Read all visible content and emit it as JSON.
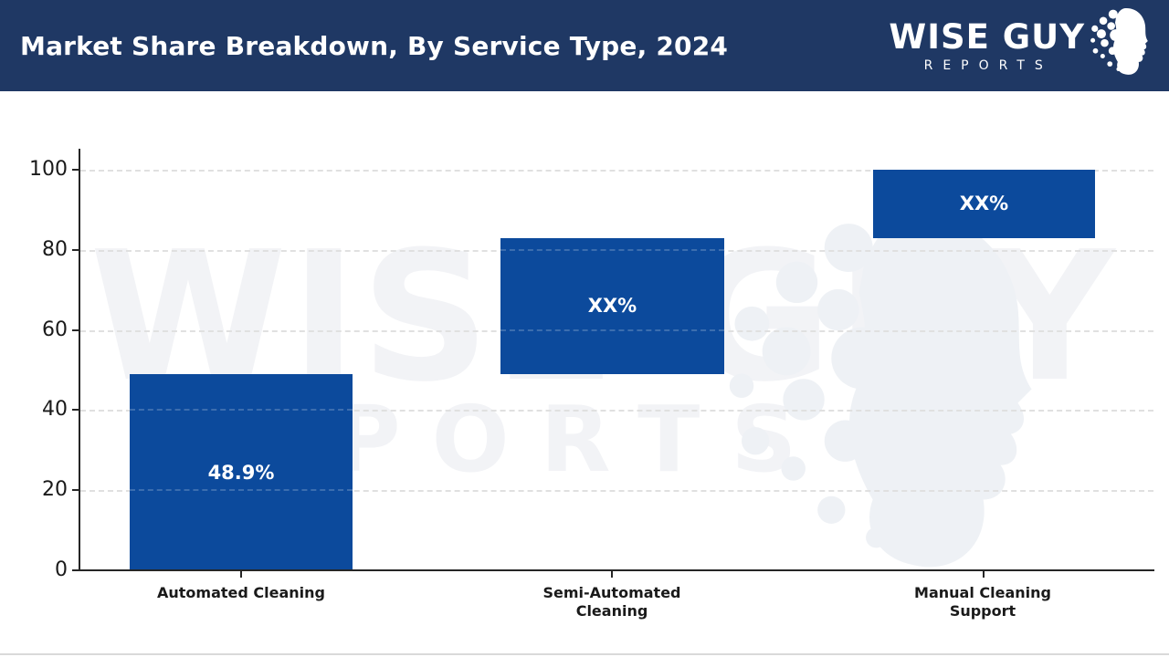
{
  "header": {
    "title": "Market Share Breakdown, By Service Type, 2024",
    "brand_line1": "WISE GUY",
    "brand_line2": "REPORTS"
  },
  "watermark": {
    "line1": "WISE GUY",
    "line2": "REPORTS"
  },
  "colors": {
    "header_bg": "#1f3864",
    "bar": "#0c4a9c",
    "bar_label": "#ffffff",
    "gridline": "#e0e0e0",
    "axis": "#262626",
    "tick_text": "#1a1a1a",
    "watermark": "#f2f3f6"
  },
  "chart_data": {
    "type": "bar",
    "variant": "waterfall-stacked-to-100",
    "title": "Market Share Breakdown, By Service Type, 2024",
    "categories": [
      "Automated Cleaning",
      "Semi-Automated Cleaning",
      "Manual Cleaning Support"
    ],
    "categories_display": [
      [
        "Automated Cleaning"
      ],
      [
        "Semi-Automated",
        "Cleaning"
      ],
      [
        "Manual Cleaning",
        "Support"
      ]
    ],
    "segments": [
      {
        "category": "Automated Cleaning",
        "start": 0,
        "end": 48.9,
        "label": "48.9%"
      },
      {
        "category": "Semi-Automated Cleaning",
        "start": 48.9,
        "end": 83,
        "label": "XX%"
      },
      {
        "category": "Manual Cleaning Support",
        "start": 83,
        "end": 100,
        "label": "XX%"
      }
    ],
    "bar_labels": [
      "48.9%",
      "XX%",
      "XX%"
    ],
    "ylim": [
      0,
      100
    ],
    "yticks_desc": [
      100,
      80,
      60,
      40,
      20,
      0
    ],
    "xlabel": "",
    "ylabel": "",
    "grid": "horizontal-dashed",
    "legend": "none"
  }
}
